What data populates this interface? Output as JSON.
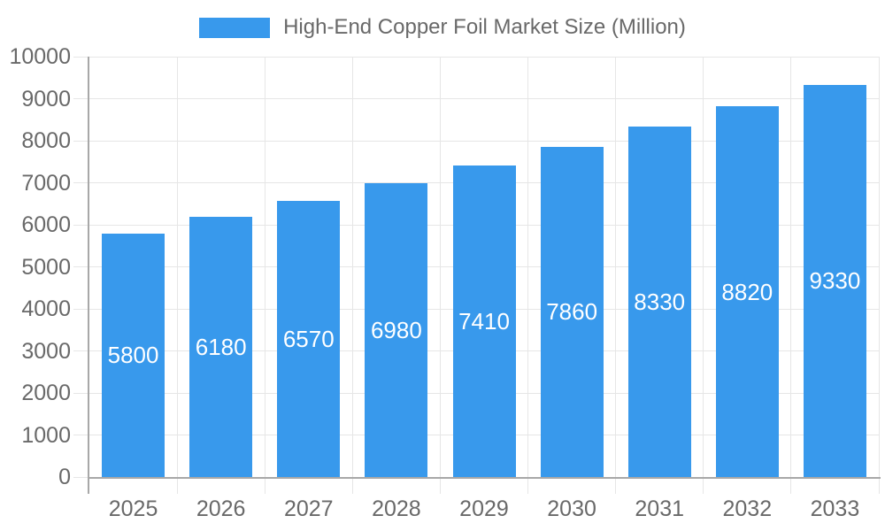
{
  "legend": {
    "label": "High-End Copper Foil Market Size (Million)"
  },
  "colors": {
    "bar": "#3899EC",
    "grid": "#E6E6E6",
    "axis": "#A8A8A8",
    "tick_text": "#696969",
    "legend_text": "#696969",
    "value_text": "#FFFFFF",
    "background": "#FFFFFF"
  },
  "chart_data": {
    "type": "bar",
    "title": "High-End Copper Foil Market Size (Million)",
    "categories": [
      "2025",
      "2026",
      "2027",
      "2028",
      "2029",
      "2030",
      "2031",
      "2032",
      "2033"
    ],
    "values": [
      5800,
      6180,
      6570,
      6980,
      7410,
      7860,
      8330,
      8820,
      9330
    ],
    "xlabel": "",
    "ylabel": "",
    "ylim": [
      0,
      10000
    ],
    "y_ticks": [
      0,
      1000,
      2000,
      3000,
      4000,
      5000,
      6000,
      7000,
      8000,
      9000,
      10000
    ],
    "grid": "on",
    "legend_position": "top",
    "value_label_position": "inside-center"
  }
}
